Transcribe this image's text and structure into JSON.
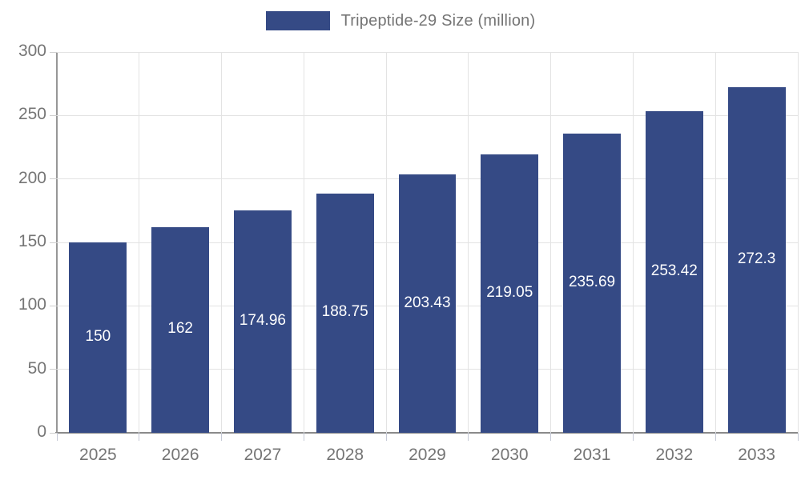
{
  "chart_data": {
    "type": "bar",
    "title": "",
    "legend": {
      "label": "Tripeptide-29 Size (million)",
      "position": "top"
    },
    "categories": [
      "2025",
      "2026",
      "2027",
      "2028",
      "2029",
      "2030",
      "2031",
      "2032",
      "2033"
    ],
    "series": [
      {
        "name": "Tripeptide-29 Size (million)",
        "values": [
          150,
          162,
          174.96,
          188.75,
          203.43,
          219.05,
          235.69,
          253.42,
          272.3
        ],
        "value_labels": [
          "150",
          "162",
          "174.96",
          "188.75",
          "203.43",
          "219.05",
          "235.69",
          "253.42",
          "272.3"
        ]
      }
    ],
    "xlabel": "",
    "ylabel": "",
    "ylim": [
      0,
      300
    ],
    "yticks": [
      0,
      50,
      100,
      150,
      200,
      250,
      300
    ],
    "grid": true,
    "bar_label_position": "center-inside",
    "colors": {
      "bar": "#354a85",
      "bar_label": "#ffffff",
      "axis_text": "#757575",
      "legend_text": "#757575",
      "grid": "#e3e3e3",
      "axis_line": "#8a8a8a"
    }
  }
}
